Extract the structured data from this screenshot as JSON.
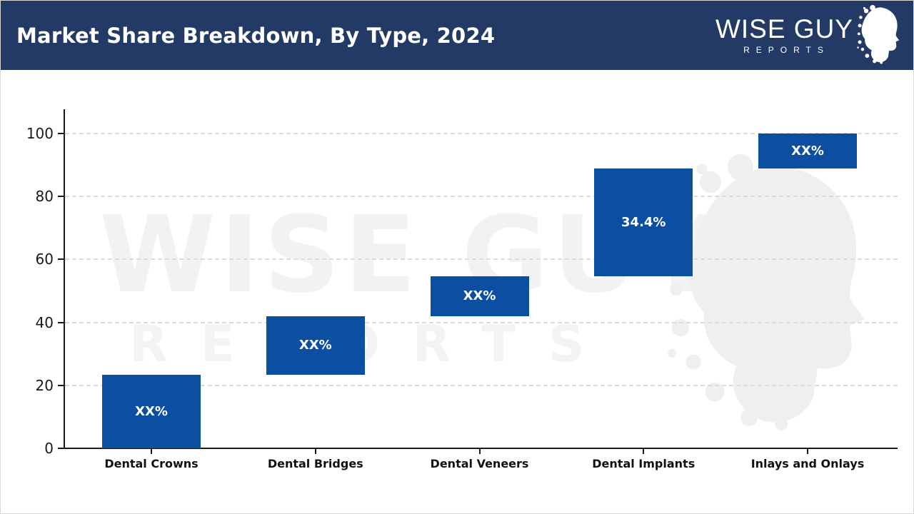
{
  "header": {
    "title": "Market Share Breakdown, By Type, 2024",
    "logo": {
      "line1": "WISE GUY",
      "line2": "REPORTS"
    }
  },
  "watermark": {
    "line1": "WISE GUY",
    "line2": "REPORTS"
  },
  "colors": {
    "header_bg": "#233A66",
    "bar": "#0B4EA2",
    "grid": "#DCDCDC",
    "axis": "#1A1A1A",
    "watermark_text": "#F2F2F2",
    "watermark_face": "#EFEFEF",
    "bar_label": "#FFFFFF"
  },
  "chart_data": {
    "type": "bar",
    "subtype": "waterfall",
    "title": "Market Share Breakdown, By Type, 2024",
    "categories": [
      "Dental Crowns",
      "Dental Bridges",
      "Dental Veneers",
      "Dental Implants",
      "Inlays and Onlays"
    ],
    "bars": [
      {
        "category": "Dental Crowns",
        "start": 0,
        "end": 23.4,
        "value_label": "XX%"
      },
      {
        "category": "Dental Bridges",
        "start": 23.4,
        "end": 42.0,
        "value_label": "XX%"
      },
      {
        "category": "Dental Veneers",
        "start": 42.0,
        "end": 54.6,
        "value_label": "XX%"
      },
      {
        "category": "Dental Implants",
        "start": 54.6,
        "end": 89.0,
        "value_label": "34.4%"
      },
      {
        "category": "Inlays and Onlays",
        "start": 89.0,
        "end": 100.0,
        "value_label": "XX%"
      }
    ],
    "yticks": [
      0,
      20,
      40,
      60,
      80,
      100
    ],
    "ylim": [
      0,
      108
    ],
    "xlabel": "",
    "ylabel": "",
    "grid": "dashed-horizontal",
    "legend": "none"
  }
}
